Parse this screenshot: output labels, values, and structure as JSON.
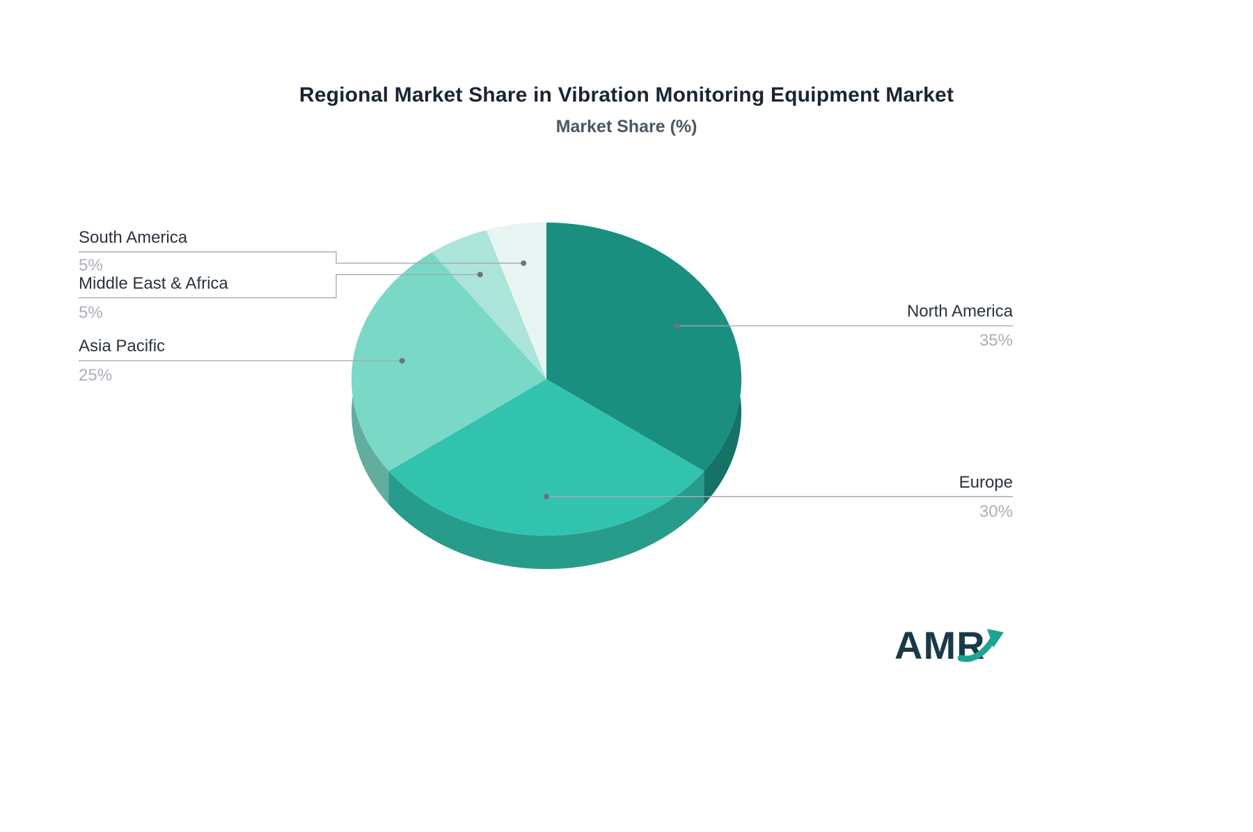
{
  "title": "Regional Market Share in Vibration Monitoring Equipment Market",
  "subtitle": "Market Share (%)",
  "logo": {
    "text": "AMR"
  },
  "chart_data": {
    "type": "pie",
    "style": "3d",
    "title": "Regional Market Share in Vibration Monitoring Equipment Market",
    "subtitle": "Market Share (%)",
    "unit": "%",
    "start_angle": "top",
    "direction": "clockwise",
    "legend_position": "none",
    "categories": [
      "North America",
      "Europe",
      "Asia Pacific",
      "Middle East & Africa",
      "South America"
    ],
    "values": [
      35,
      30,
      25,
      5,
      5
    ],
    "colors": [
      "#1a8f80",
      "#31c3ae",
      "#79d8c6",
      "#abe4d8",
      "#e7f4f1"
    ],
    "line_color": "#a6aab0",
    "dot_color": "#6b7280",
    "labels": [
      {
        "name": "North America",
        "value_text": "35%"
      },
      {
        "name": "Europe",
        "value_text": "30%"
      },
      {
        "name": "Asia Pacific",
        "value_text": "25%"
      },
      {
        "name": "Middle East & Africa",
        "value_text": "5%"
      },
      {
        "name": "South America",
        "value_text": "5%"
      }
    ]
  }
}
